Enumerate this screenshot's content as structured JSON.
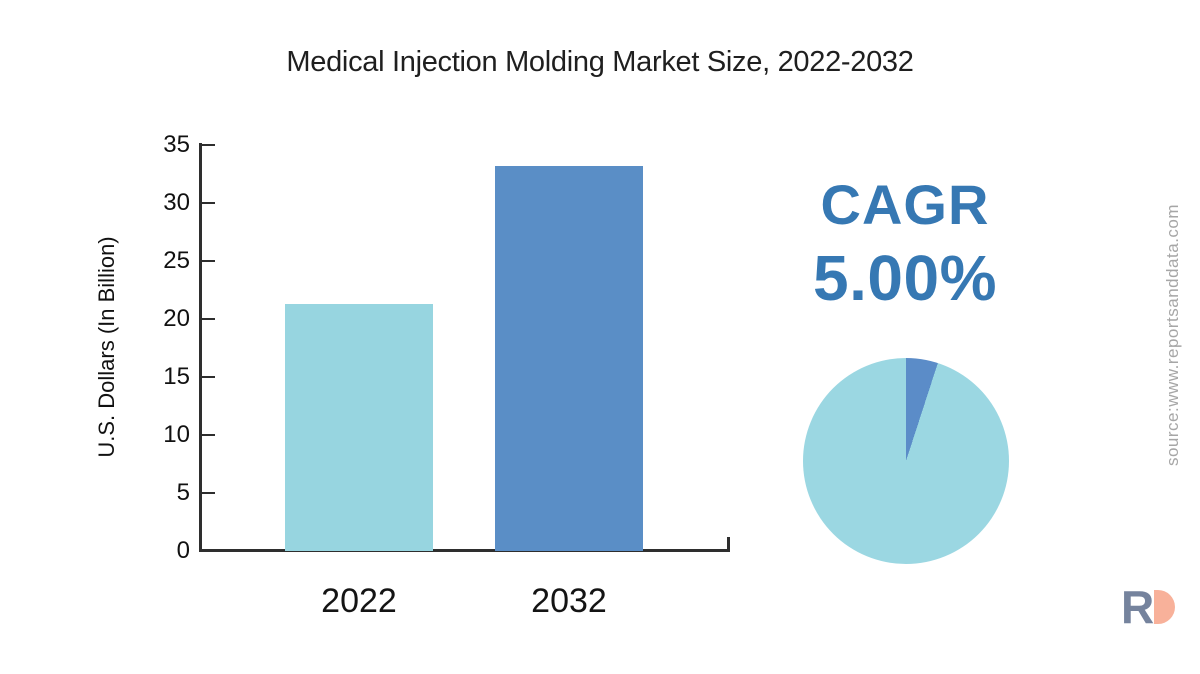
{
  "chart_data": {
    "type": "bar",
    "title": "Medical Injection Molding Market Size, 2022-2032",
    "ylabel": "U.S. Dollars (In Billion)",
    "xlabel": "",
    "categories": [
      "2022",
      "2032"
    ],
    "values": [
      21.3,
      33.2
    ],
    "bar_colors": [
      "#97d5e0",
      "#5a8ec6"
    ],
    "ylim": [
      0,
      35
    ],
    "y_ticks": [
      0,
      5,
      10,
      15,
      20,
      25,
      30,
      35
    ],
    "grid": false,
    "legend": "none",
    "axis_color": "#2e2e2e"
  },
  "cagr": {
    "label": "CAGR",
    "value": "5.00%",
    "text_color": "#3678b3",
    "pie": {
      "percent": 5.0,
      "slice_color": "#5b8cc8",
      "remainder_color": "#9bd7e2"
    }
  },
  "source": {
    "text": "source:www.reportsanddata.com",
    "color": "#a6a6a6"
  },
  "logo": {
    "letter_r": "R",
    "r_color": "#75839d",
    "d_color": "#f8b19a"
  }
}
